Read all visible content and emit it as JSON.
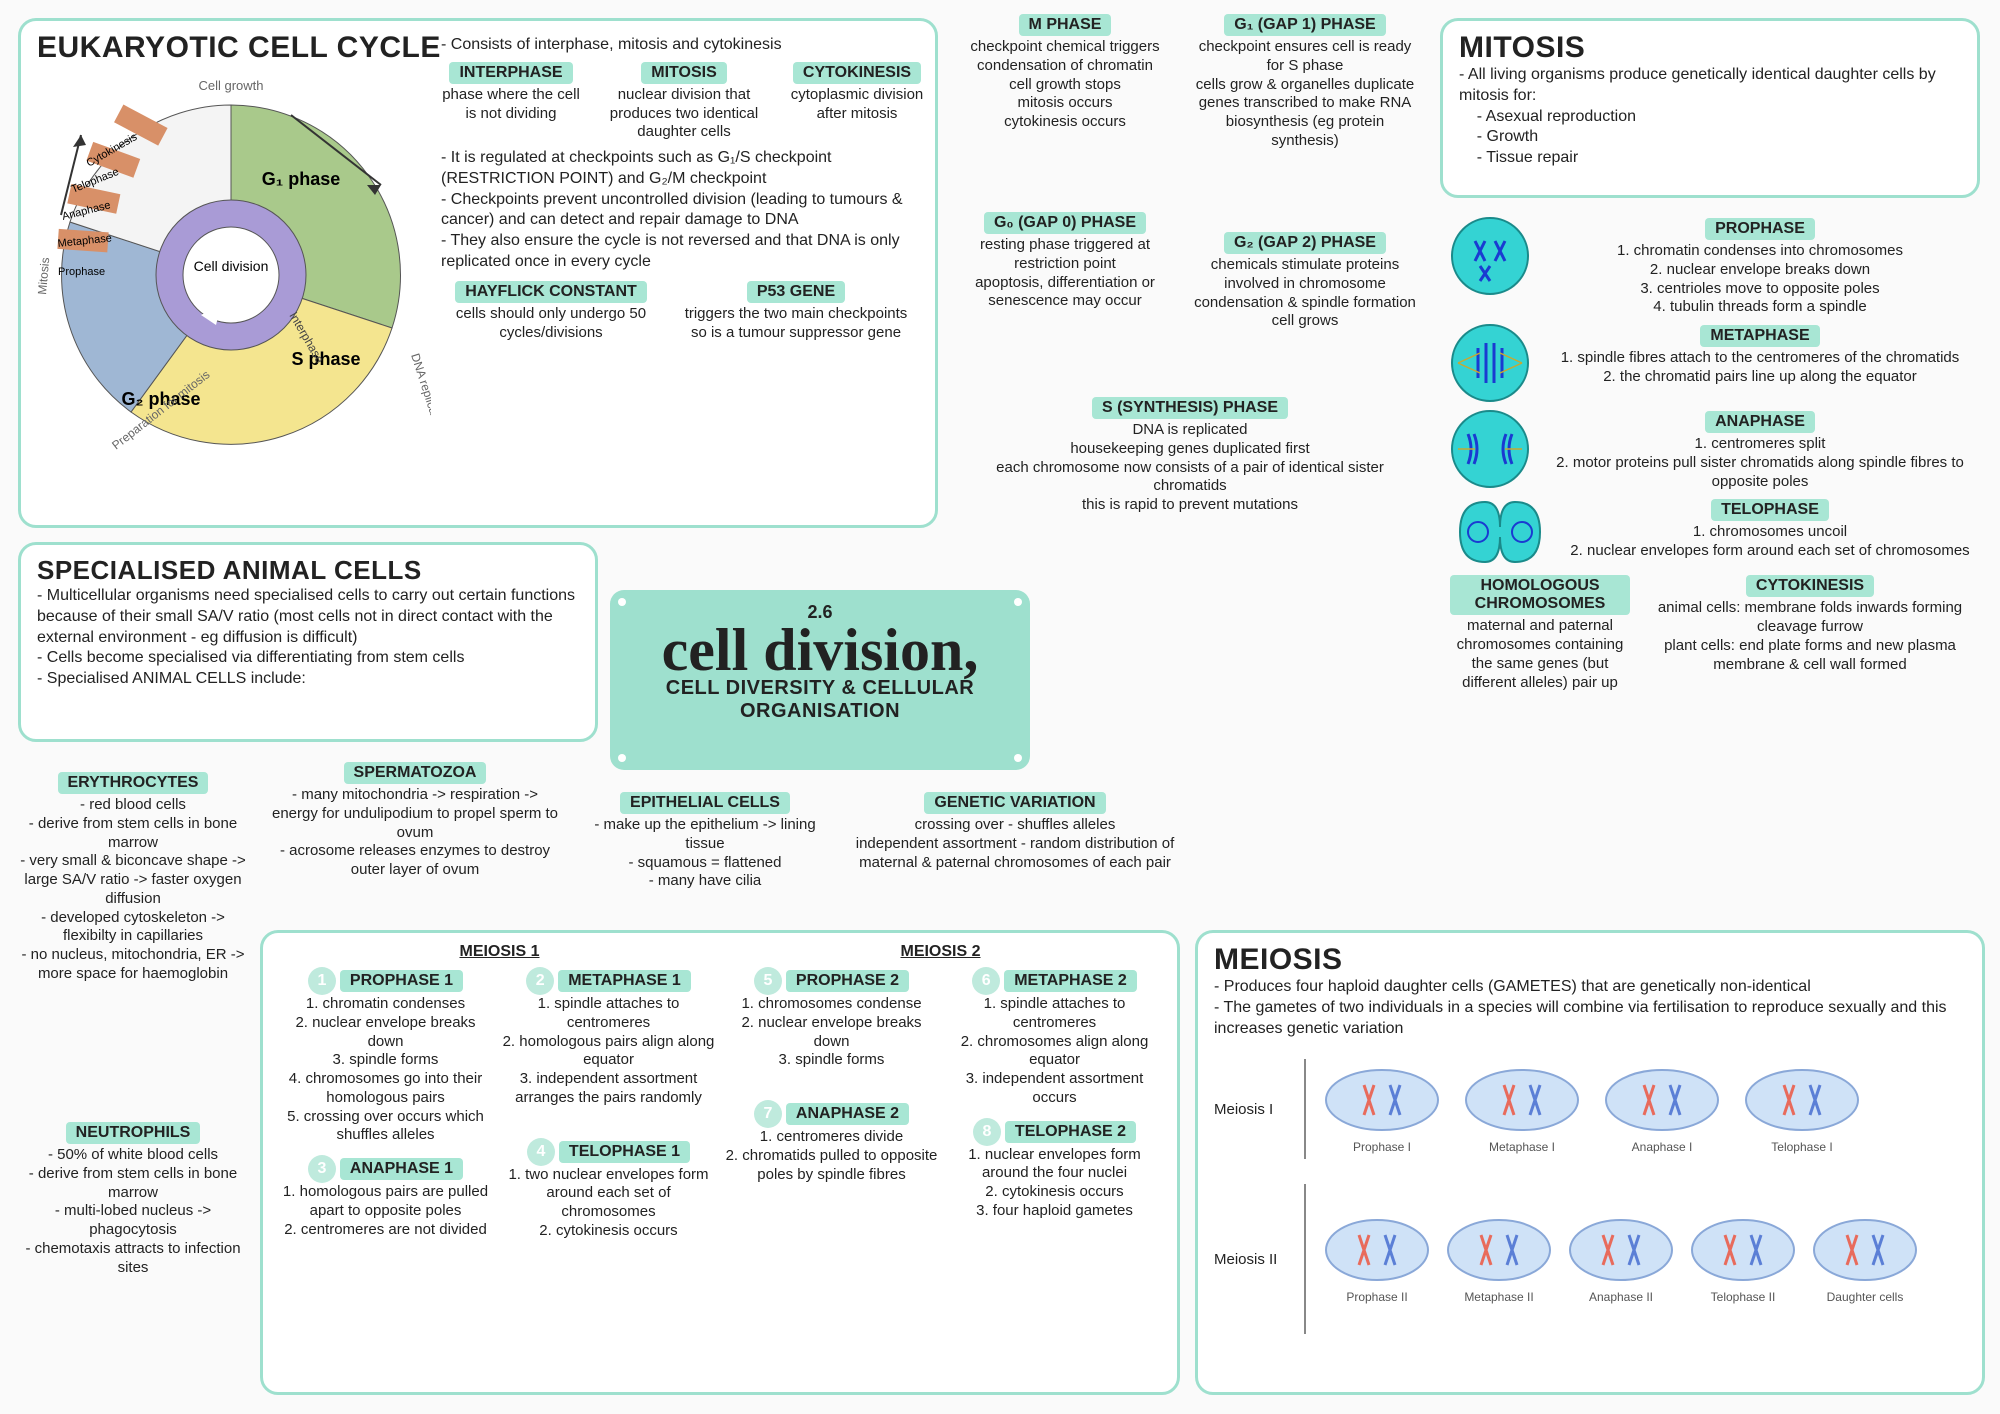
{
  "colors": {
    "border": "#9ee0ce",
    "hl_bg": "#a8e6d4",
    "hl_bg2": "#b6ebdb",
    "center_bg": "#9ee0ce",
    "numcircle": "#bfeadd",
    "cell_fill": "#34d3d3",
    "cell_stroke": "#1a8a8a",
    "chrom": "#1a3bd1",
    "meiosis_cell": "#cfe2f7",
    "meiosis_stroke": "#8aa8d8",
    "chrom_red": "#e86b5c",
    "chrom_blue": "#5b7fd6"
  },
  "center": {
    "num": "2.6",
    "main": "cell division,",
    "sub": "CELL DIVERSITY & CELLULAR ORGANISATION"
  },
  "euk": {
    "heading": "EUKARYOTIC CELL CYCLE",
    "intro": "- Consists of interphase, mitosis and cytokinesis",
    "labels": {
      "interphase": "INTERPHASE",
      "mitosis": "MITOSIS",
      "cytokinesis": "CYTOKINESIS",
      "hayflick": "HAYFLICK CONSTANT",
      "p53": "P53 GENE"
    },
    "defs": {
      "interphase": "phase where the cell is not dividing",
      "mitosis": "nuclear division that produces two identical daughter cells",
      "cytokinesis": "cytoplasmic division after mitosis"
    },
    "bullets": [
      "- It is regulated at checkpoints such as G₁/S checkpoint (RESTRICTION POINT) and G₂/M checkpoint",
      "- Checkpoints prevent uncontrolled division (leading to tumours & cancer) and can detect and repair damage to DNA",
      "- They also ensure the cycle is not reversed and that DNA is only replicated once in every cycle"
    ],
    "hayflick": "cells should only undergo 50 cycles/divisions",
    "p53": "triggers the two main checkpoints so is a tumour suppressor gene",
    "wheel": {
      "g1": "G₁ phase",
      "s": "S phase",
      "g2": "G₂ phase",
      "center": "Cell division",
      "outer": [
        "Cytokinesis",
        "Telophase",
        "Anaphase",
        "Metaphase",
        "Prophase"
      ],
      "arc_top": "Cell growth",
      "arc_right": "DNA replication",
      "arc_left": "Preparation for mitosis",
      "arc_inner": "Interphase",
      "arc_mitosis": "Mitosis"
    }
  },
  "phases": {
    "m": {
      "label": "M PHASE",
      "lines": [
        "checkpoint chemical triggers condensation of chromatin",
        "cell growth stops",
        "mitosis occurs",
        "cytokinesis occurs"
      ]
    },
    "g1": {
      "label": "G₁ (GAP 1) PHASE",
      "lines": [
        "checkpoint ensures cell is ready for S phase",
        "cells grow & organelles duplicate",
        "genes transcribed to make RNA",
        "biosynthesis (eg protein synthesis)"
      ]
    },
    "g0": {
      "label": "G₀ (GAP 0) PHASE",
      "lines": [
        "resting phase triggered at restriction point",
        "apoptosis, differentiation or senescence may occur"
      ]
    },
    "g2": {
      "label": "G₂ (GAP 2) PHASE",
      "lines": [
        "chemicals stimulate proteins involved in chromosome condensation & spindle formation",
        "cell grows"
      ]
    },
    "s": {
      "label": "S (SYNTHESIS) PHASE",
      "lines": [
        "DNA is replicated",
        "housekeeping genes duplicated first",
        "each chromosome now consists of a pair of identical sister chromatids",
        "this is rapid to prevent mutations"
      ]
    }
  },
  "mitosis": {
    "heading": "MITOSIS",
    "intro": [
      "- All living organisms produce genetically identical daughter cells by mitosis for:",
      "    - Asexual reproduction",
      "    - Growth",
      "    - Tissue repair"
    ],
    "stages": {
      "prophase": {
        "label": "PROPHASE",
        "lines": [
          "1. chromatin condenses into chromosomes",
          "2. nuclear envelope breaks down",
          "3. centrioles move to opposite poles",
          "4. tubulin threads form a spindle"
        ]
      },
      "metaphase": {
        "label": "METAPHASE",
        "lines": [
          "1. spindle fibres attach to the centromeres of the chromatids",
          "2. the chromatid pairs line up along the equator"
        ]
      },
      "anaphase": {
        "label": "ANAPHASE",
        "lines": [
          "1. centromeres split",
          "2. motor proteins pull sister chromatids along spindle fibres to opposite poles"
        ]
      },
      "telophase": {
        "label": "TELOPHASE",
        "lines": [
          "1. chromosomes uncoil",
          "2. nuclear envelopes form around each set of chromosomes"
        ]
      },
      "cytokinesis": {
        "label": "CYTOKINESIS",
        "lines": [
          "animal cells: membrane folds inwards forming cleavage furrow",
          "plant cells: end plate forms and new plasma membrane & cell wall formed"
        ]
      }
    },
    "homologous": {
      "label": "HOMOLOGOUS CHROMOSOMES",
      "text": "maternal and paternal chromosomes containing the same genes (but different alleles) pair up"
    }
  },
  "spec": {
    "heading": "SPECIALISED ANIMAL CELLS",
    "intro": [
      "- Multicellular organisms need specialised cells to carry out certain functions because of their small SA/V ratio (most cells not in direct contact with the external environment - eg diffusion is difficult)",
      "- Cells become specialised via differentiating from stem cells",
      "- Specialised ANIMAL CELLS include:"
    ],
    "erythrocytes": {
      "label": "ERYTHROCYTES",
      "lines": [
        "- red blood cells",
        "- derive from stem cells in bone marrow",
        "- very small & biconcave shape -> large SA/V ratio -> faster oxygen diffusion",
        "- developed cytoskeleton -> flexibilty in capillaries",
        "- no nucleus, mitochondria, ER -> more space for haemoglobin"
      ]
    },
    "neutrophils": {
      "label": "NEUTROPHILS",
      "lines": [
        "- 50% of white blood cells",
        "- derive from stem cells in bone marrow",
        "- multi-lobed nucleus -> phagocytosis",
        "- chemotaxis attracts to infection sites"
      ]
    },
    "spermatozoa": {
      "label": "SPERMATOZOA",
      "lines": [
        "- many mitochondria -> respiration -> energy for undulipodium to propel sperm to ovum",
        "- acrosome releases enzymes to destroy outer layer of ovum"
      ]
    },
    "epithelial": {
      "label": "EPITHELIAL CELLS",
      "lines": [
        "- make up the epithelium -> lining tissue",
        "- squamous = flattened",
        "- many have cilia"
      ]
    },
    "genetic": {
      "label": "GENETIC VARIATION",
      "lines": [
        "crossing over - shuffles alleles",
        "independent assortment - random distribution of maternal & paternal chromosomes of each pair"
      ]
    }
  },
  "meiosis_steps": {
    "h1": "MEIOSIS 1",
    "h2": "MEIOSIS 2",
    "p1": {
      "n": "1",
      "label": "PROPHASE 1",
      "lines": [
        "1. chromatin condenses",
        "2. nuclear envelope breaks down",
        "3. spindle forms",
        "4. chromosomes go into their homologous pairs",
        "5. crossing over occurs which shuffles alleles"
      ]
    },
    "m1": {
      "n": "2",
      "label": "METAPHASE 1",
      "lines": [
        "1. spindle attaches to centromeres",
        "2. homologous pairs align along equator",
        "3. independent assortment arranges the pairs randomly"
      ]
    },
    "a1": {
      "n": "3",
      "label": "ANAPHASE 1",
      "lines": [
        "1. homologous pairs are pulled apart to opposite poles",
        "2. centromeres are not divided"
      ]
    },
    "t1": {
      "n": "4",
      "label": "TELOPHASE 1",
      "lines": [
        "1. two nuclear envelopes form around each set of chromosomes",
        "2. cytokinesis occurs"
      ]
    },
    "p2": {
      "n": "5",
      "label": "PROPHASE 2",
      "lines": [
        "1. chromosomes condense",
        "2. nuclear envelope breaks down",
        "3. spindle forms"
      ]
    },
    "m2": {
      "n": "6",
      "label": "METAPHASE 2",
      "lines": [
        "1. spindle attaches to centromeres",
        "2. chromosomes align along equator",
        "3. independent assortment occurs"
      ]
    },
    "a2": {
      "n": "7",
      "label": "ANAPHASE 2",
      "lines": [
        "1. centromeres divide",
        "2. chromatids pulled to opposite poles by spindle fibres"
      ]
    },
    "t2": {
      "n": "8",
      "label": "TELOPHASE 2",
      "lines": [
        "1. nuclear envelopes form around the four nuclei",
        "2. cytokinesis occurs",
        "3. four haploid gametes"
      ]
    }
  },
  "meiosis_panel": {
    "heading": "MEIOSIS",
    "intro": [
      "- Produces four haploid daughter cells (GAMETES) that are genetically non-identical",
      "- The gametes of two individuals in a species will combine via fertilisation to reproduce sexually and this increases genetic variation"
    ],
    "row1": "Meiosis I",
    "row2": "Meiosis II",
    "labels1": [
      "Prophase I",
      "Metaphase I",
      "Anaphase I",
      "Telophase I"
    ],
    "labels2": [
      "Prophase II",
      "Metaphase II",
      "Anaphase II",
      "Telophase II",
      "Daughter cells"
    ]
  }
}
